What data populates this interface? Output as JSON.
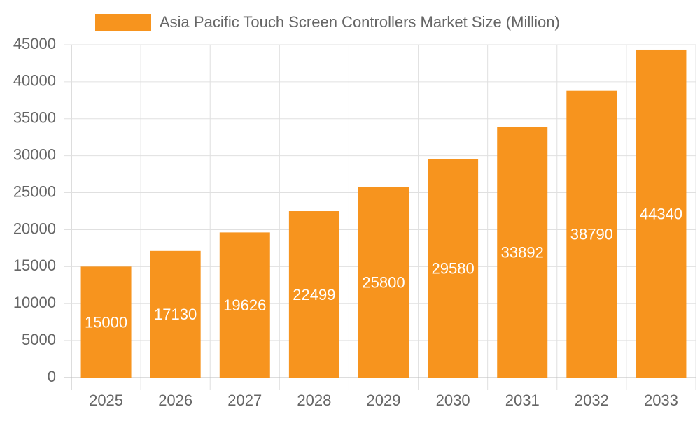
{
  "chart_data": {
    "type": "bar",
    "categories": [
      "2025",
      "2026",
      "2027",
      "2028",
      "2029",
      "2030",
      "2031",
      "2032",
      "2033"
    ],
    "series": [
      {
        "name": "Asia Pacific Touch Screen Controllers Market Size (Million)",
        "color": "#f7941e",
        "values": [
          15000,
          17130,
          19626,
          22499,
          25800,
          29580,
          33892,
          38790,
          44340
        ]
      }
    ],
    "ylim": [
      0,
      45000
    ],
    "yticks": [
      0,
      5000,
      10000,
      15000,
      20000,
      25000,
      30000,
      35000,
      40000,
      45000
    ],
    "grid": true,
    "legend": "top",
    "data_labels": true
  }
}
